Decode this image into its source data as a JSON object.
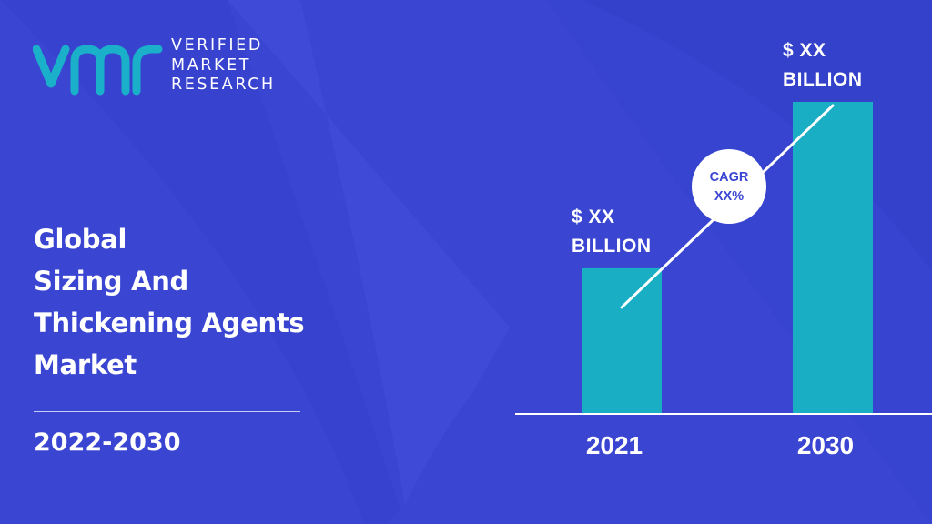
{
  "brand": {
    "name_lines": [
      "VERIFIED",
      "MARKET",
      "RESEARCH"
    ],
    "logo_text": "vmr",
    "logo_color": "#1ab0c9"
  },
  "report": {
    "title_lines": [
      "Global",
      "Sizing And",
      "Thickening Agents",
      "Market"
    ],
    "period": "2022-2030"
  },
  "colors": {
    "background": "#3a46d2",
    "bar": "#19aec4",
    "text": "#ffffff",
    "cagr_text": "#3a46d2"
  },
  "chart_data": {
    "type": "bar",
    "categories": [
      "2021",
      "2030"
    ],
    "values": [
      1.0,
      2.15
    ],
    "value_labels": [
      [
        "$ XX",
        "BILLION"
      ],
      [
        "$ XX",
        "BILLION"
      ]
    ],
    "cagr_label": [
      "CAGR",
      "XX%"
    ],
    "grid": false,
    "xlabel": "",
    "ylabel": ""
  }
}
